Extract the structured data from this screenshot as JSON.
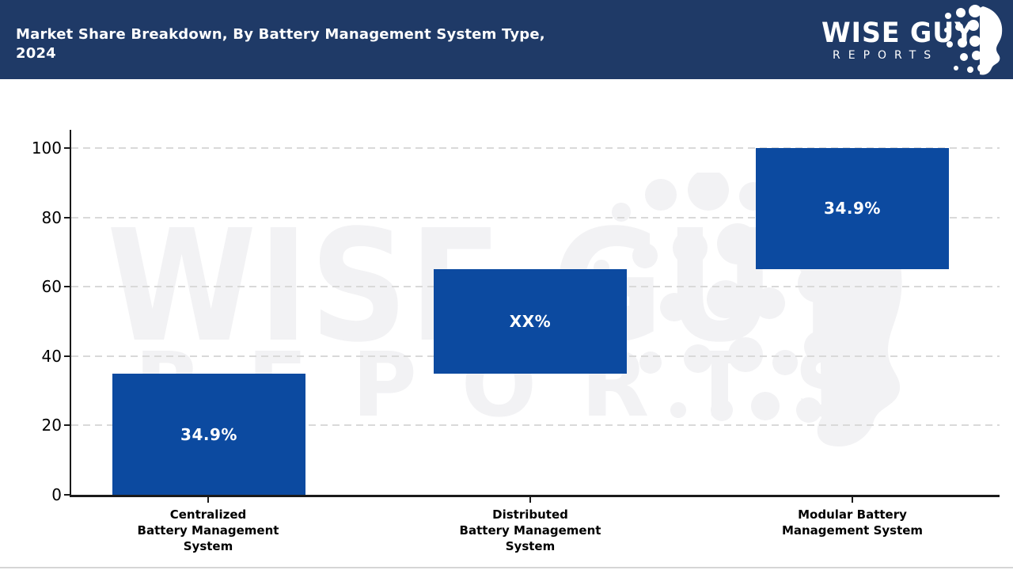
{
  "header": {
    "title": "Market Share Breakdown, By Battery Management System Type,\n2024",
    "bg_color": "#1f3a67",
    "logo": {
      "line1": "WISE GUY",
      "line2": "REPORTS"
    }
  },
  "watermark": {
    "line1": "WISE GUY",
    "line2": "REPORTS"
  },
  "chart_data": {
    "type": "bar",
    "variant": "waterfall",
    "title": "Market Share Breakdown, By Battery Management System Type, 2024",
    "categories": [
      "Centralized\nBattery Management\nSystem",
      "Distributed\nBattery Management\nSystem",
      "Modular Battery\nManagement System"
    ],
    "segments": [
      {
        "start": 0,
        "end": 34.9,
        "label": "34.9%"
      },
      {
        "start": 34.9,
        "end": 65.1,
        "label": "XX%"
      },
      {
        "start": 65.1,
        "end": 100,
        "label": "34.9%"
      }
    ],
    "values": [
      34.9,
      30.2,
      34.9
    ],
    "bar_labels": [
      "34.9%",
      "XX%",
      "34.9%"
    ],
    "xlabel": "",
    "ylabel": "",
    "ylim": [
      0,
      100
    ],
    "yticks": [
      0,
      20,
      40,
      60,
      80,
      100
    ],
    "grid": {
      "axis": "y",
      "style": "dashed",
      "color": "#d9d9d9"
    },
    "legend": null,
    "bar_color": "#0c4aa0",
    "bar_label_color": "#ffffff",
    "axis_color": "#1a1a1a"
  }
}
